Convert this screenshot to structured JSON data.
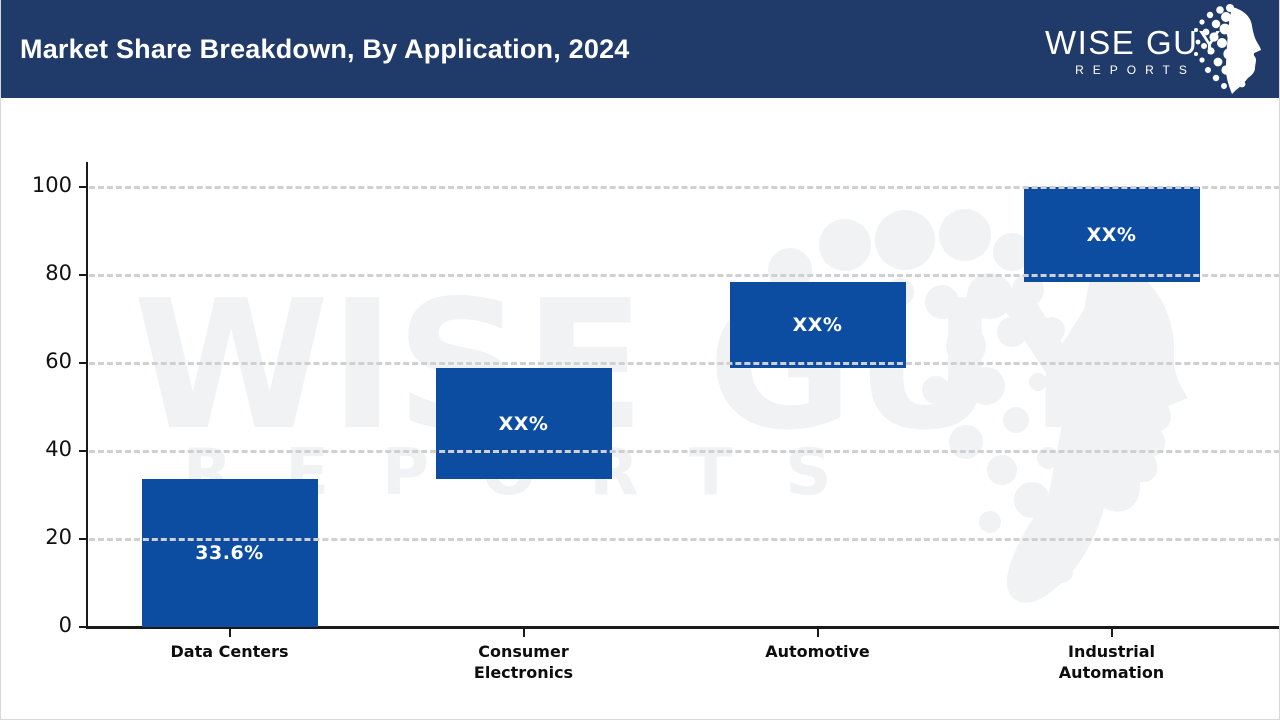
{
  "header": {
    "title": "Market Share Breakdown, By Application, 2024",
    "logo": {
      "line1": "WISE GUY",
      "line2": "REPORTS"
    }
  },
  "watermark": {
    "line1": "WISE GUY",
    "line2": "REPORTS"
  },
  "colors": {
    "header_bg": "#203a69",
    "bar": "#0c4da2",
    "grid": "#d0d0d0",
    "axis": "#1a1a1a",
    "bar_label": "#ffffff",
    "watermark": "#f1f2f4"
  },
  "chart_data": {
    "type": "bar",
    "subtype": "waterfall",
    "title": "Market Share Breakdown, By Application, 2024",
    "xlabel": "",
    "ylabel": "",
    "ylim": [
      0,
      105
    ],
    "y_ticks": [
      0,
      20,
      40,
      60,
      80,
      100
    ],
    "grid": "horizontal-dashed",
    "legend": "none",
    "categories": [
      "Data Centers",
      "Consumer\nElectronics",
      "Automotive",
      "Industrial\nAutomation"
    ],
    "bars": [
      {
        "category": "Data Centers",
        "start": 0,
        "end": 33.6,
        "value": 33.6,
        "label": "33.6%"
      },
      {
        "category": "Consumer\nElectronics",
        "start": 33.6,
        "end": 58.8,
        "value": 25.2,
        "label": "XX%"
      },
      {
        "category": "Automotive",
        "start": 58.8,
        "end": 78.3,
        "value": 19.5,
        "label": "XX%"
      },
      {
        "category": "Industrial\nAutomation",
        "start": 78.3,
        "end": 100,
        "value": 21.7,
        "label": "XX%"
      }
    ]
  }
}
